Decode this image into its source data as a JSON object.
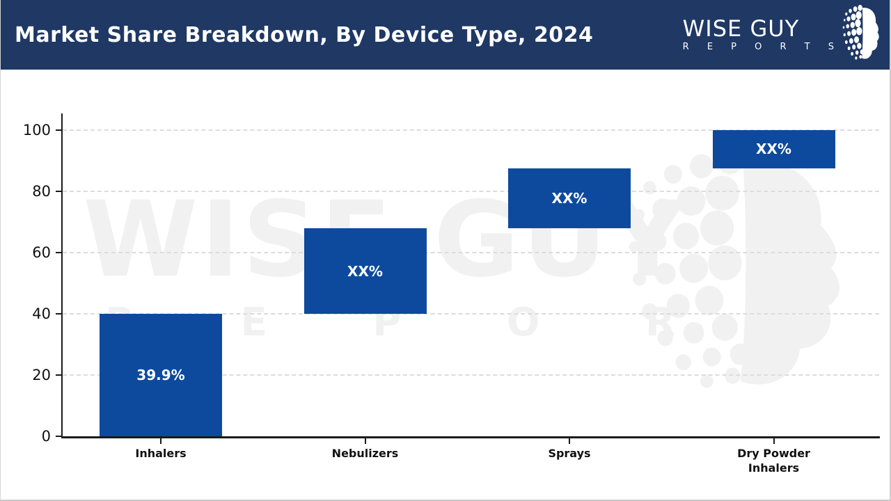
{
  "header": {
    "title": "Market Share Breakdown, By Device Type, 2024",
    "logo": {
      "line1": "WISE GUY",
      "line2": "R E P O R T S"
    }
  },
  "watermark": {
    "line1": "WISE GUY",
    "line2": "R E P O R T S"
  },
  "chart_data": {
    "type": "bar",
    "subtype": "waterfall",
    "title": "Market Share Breakdown, By Device Type, 2024",
    "categories": [
      "Inhalers",
      "Nebulizers",
      "Sprays",
      "Dry Powder Inhalers"
    ],
    "segments": [
      {
        "category": "Inhalers",
        "start": 0,
        "end": 39.9,
        "label": "39.9%"
      },
      {
        "category": "Nebulizers",
        "start": 39.9,
        "end": 68,
        "label": "XX%"
      },
      {
        "category": "Sprays",
        "start": 68,
        "end": 87.6,
        "label": "XX%"
      },
      {
        "category": "Dry Powder Inhalers",
        "start": 87.6,
        "end": 100,
        "label": "XX%"
      }
    ],
    "yticks": [
      0,
      20,
      40,
      60,
      80,
      100
    ],
    "ylim": [
      0,
      105
    ],
    "xlabel": "",
    "ylabel": "",
    "grid": "horizontal-dashed",
    "legend": "none",
    "colors": {
      "bar": "#0d4a9e",
      "bar_label": "#ffffff",
      "axis": "#1a1a1a",
      "gridline": "#dcdcdc",
      "header_bg": "#1f3864",
      "watermark": "#f1f1f1"
    }
  }
}
